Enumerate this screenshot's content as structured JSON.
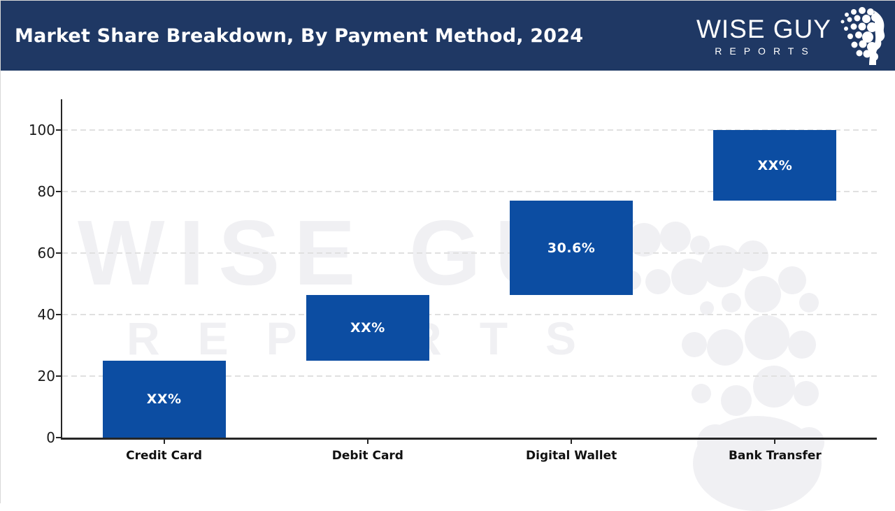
{
  "header": {
    "title": "Market Share Breakdown, By Payment Method, 2024",
    "logo": {
      "wordmark": "WISE GUY",
      "subtext": "REPORTS"
    }
  },
  "watermark": {
    "wordmark": "WISE GUY",
    "subtext": "REPORTS"
  },
  "chart_data": {
    "type": "bar",
    "variant": "waterfall-floating-bars",
    "title": "Market Share Breakdown, By Payment Method, 2024",
    "categories": [
      "Credit Card",
      "Debit Card",
      "Digital Wallet",
      "Bank Transfer"
    ],
    "segments": [
      {
        "category": "Credit Card",
        "start": 0,
        "end": 25.0,
        "value": 25.0,
        "label": "XX%"
      },
      {
        "category": "Debit Card",
        "start": 25.0,
        "end": 46.4,
        "value": 21.4,
        "label": "XX%"
      },
      {
        "category": "Digital Wallet",
        "start": 46.4,
        "end": 77.0,
        "value": 30.6,
        "label": "30.6%"
      },
      {
        "category": "Bank Transfer",
        "start": 77.0,
        "end": 100.0,
        "value": 23.0,
        "label": "XX%"
      }
    ],
    "yticks": [
      0,
      20,
      40,
      60,
      80,
      100
    ],
    "ylim": [
      0,
      105
    ],
    "xlabel": "",
    "ylabel": "",
    "grid": "horizontal-dashed",
    "legend": "none",
    "bar_color": "#0c4da2",
    "axis_color": "#262626",
    "gridline_color": "#e0e0e0",
    "header_color": "#1f3864",
    "label_color_on_bar": "#ffffff"
  }
}
